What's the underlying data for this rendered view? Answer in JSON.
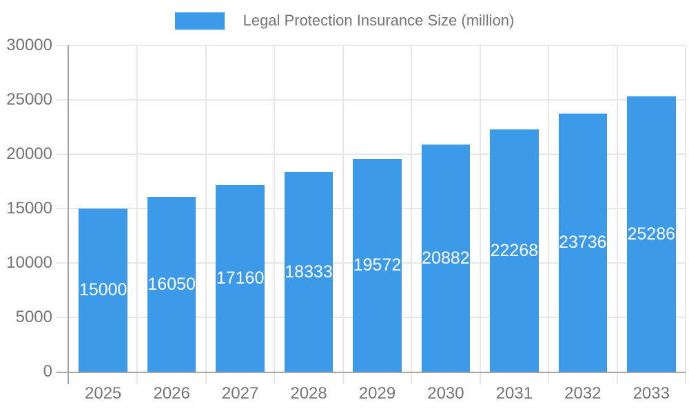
{
  "legend": {
    "label": "Legal Protection Insurance Size (million)"
  },
  "chart_data": {
    "type": "bar",
    "title": "Legal Protection Insurance Size (million)",
    "categories": [
      "2025",
      "2026",
      "2027",
      "2028",
      "2029",
      "2030",
      "2031",
      "2032",
      "2033"
    ],
    "values": [
      15000,
      16050,
      17160,
      18333,
      19572,
      20882,
      22268,
      23736,
      25286
    ],
    "xlabel": "",
    "ylabel": "",
    "ylim": [
      0,
      30000
    ],
    "yticks": [
      0,
      5000,
      10000,
      15000,
      20000,
      25000,
      30000
    ],
    "grid": true,
    "legend_position": "top",
    "value_labels_inside_bars": true
  },
  "colors": {
    "bar": "#3D9AE9",
    "axis": "#A6A6A6",
    "gridline": "#E7E7E7",
    "tick_text": "#757575",
    "value_label_text": "#FFFFFF",
    "background": "#FFFFFF"
  }
}
